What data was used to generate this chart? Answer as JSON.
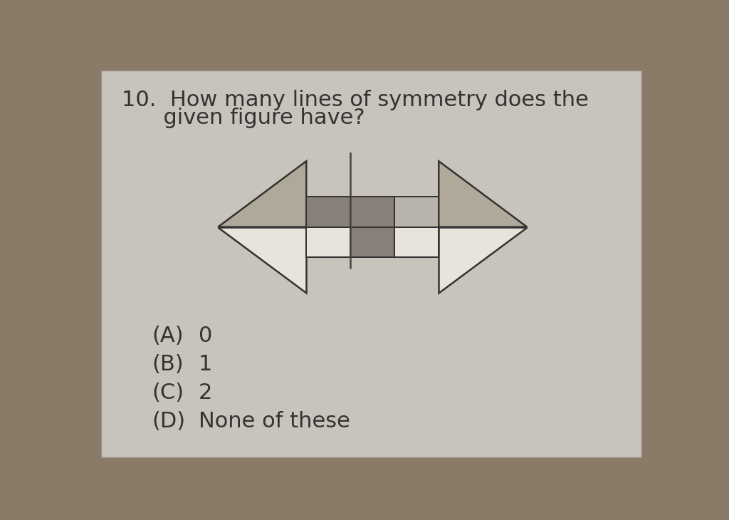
{
  "bg_color": "#8a7a68",
  "paper_color": "#c8c4bc",
  "question_text_1": "10.  How many lines of symmetry does the",
  "question_text_2": "      given figure have?",
  "options": [
    {
      "label": "(A)",
      "value": "0"
    },
    {
      "label": "(B)",
      "value": "1"
    },
    {
      "label": "(C)",
      "value": "2"
    },
    {
      "label": "(D)",
      "value": "None of these"
    }
  ],
  "question_fontsize": 22,
  "options_fontsize": 22,
  "arrow_fill_upper": "#b0a898",
  "arrow_fill_lower": "#e8e4dc",
  "arrow_edge_color": "#333333",
  "rect_fill_dark": "#888078",
  "rect_fill_light": "#b8b4ac",
  "rect_edge_color": "#333333",
  "sym_line_color": "#444444",
  "text_color": "#333333"
}
